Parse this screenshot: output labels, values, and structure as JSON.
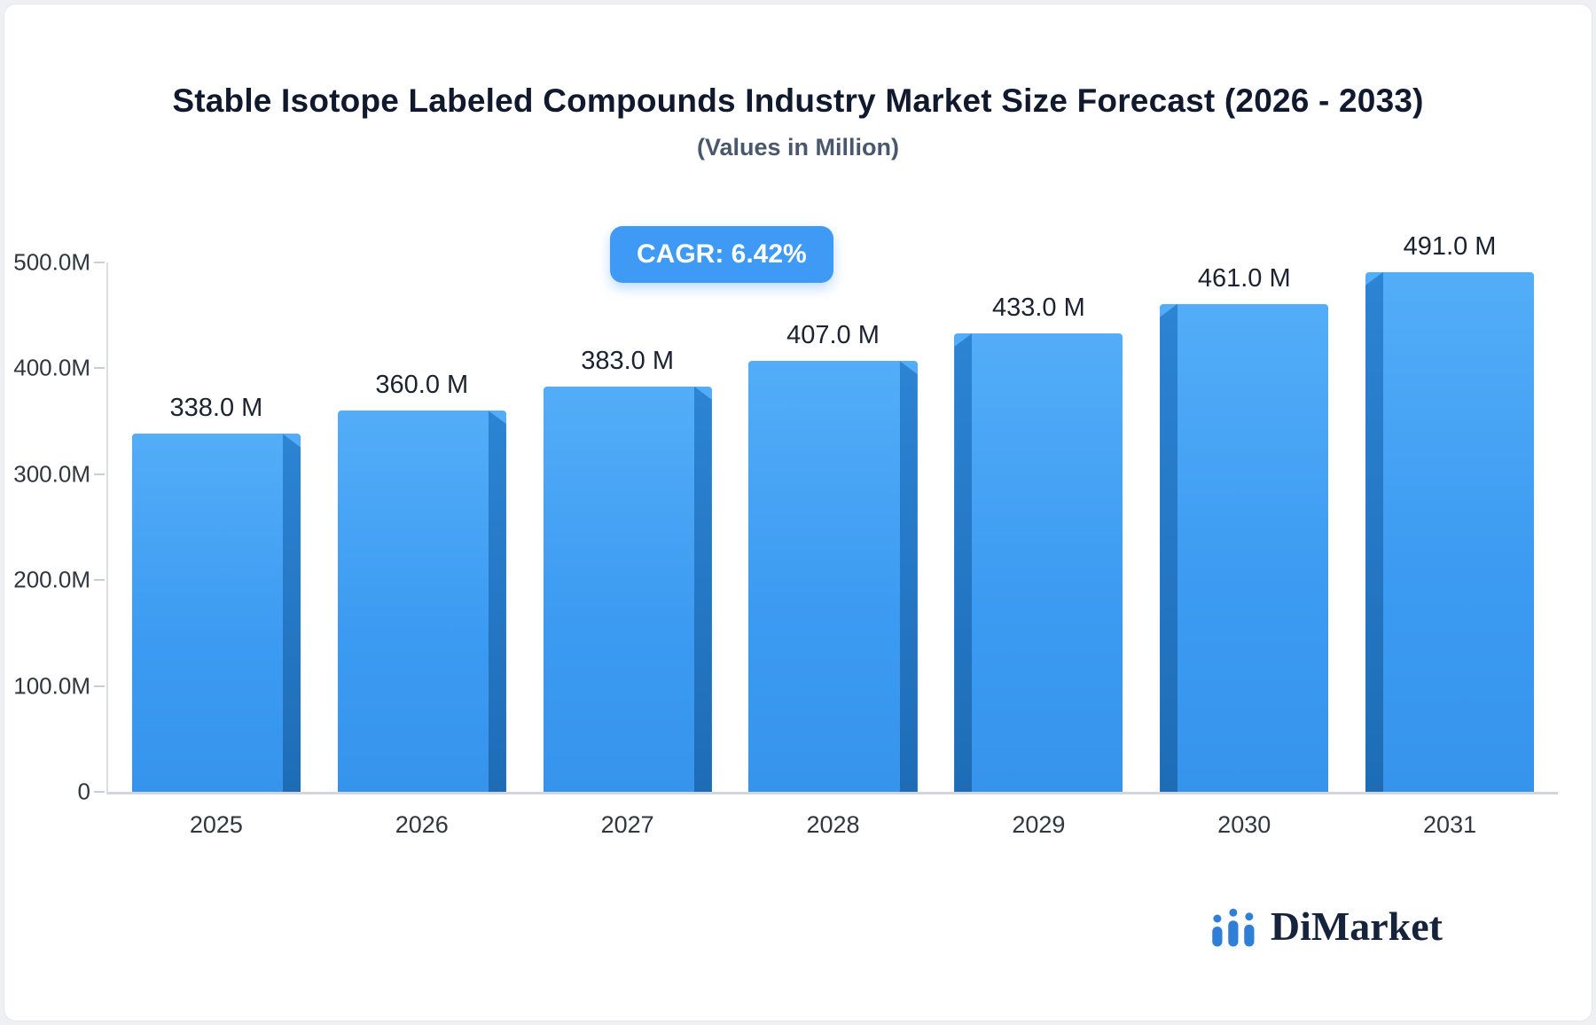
{
  "header": {
    "title": "Stable Isotope Labeled Compounds Industry Market Size Forecast (2026 - 2033)",
    "subtitle": "(Values in Million)"
  },
  "badge": {
    "cagr_label": "CAGR: 6.42%"
  },
  "branding": {
    "logo_text": "DiMarket",
    "logo_color": "#2f7fd6",
    "text_color": "#16233d"
  },
  "chart_data": {
    "type": "bar",
    "title": "Stable Isotope Labeled Compounds Industry Market Size Forecast (2026 - 2033)",
    "subtitle": "(Values in Million)",
    "categories": [
      "2025",
      "2026",
      "2027",
      "2028",
      "2029",
      "2030",
      "2031"
    ],
    "values": [
      338.0,
      360.0,
      383.0,
      407.0,
      433.0,
      461.0,
      491.0
    ],
    "value_labels": [
      "338.0 M",
      "360.0 M",
      "383.0 M",
      "407.0 M",
      "433.0 M",
      "461.0 M",
      "491.0 M"
    ],
    "xlabel": "",
    "ylabel": "",
    "ylim": [
      0,
      500
    ],
    "yticks": [
      {
        "value": 500,
        "label": "500.0M"
      },
      {
        "value": 400,
        "label": "400.0M"
      },
      {
        "value": 300,
        "label": "300.0M"
      },
      {
        "value": 200,
        "label": "200.0M"
      },
      {
        "value": 100,
        "label": "100.0M"
      },
      {
        "value": 0,
        "label": "0"
      }
    ],
    "grid": false,
    "legend": false,
    "annotations": [
      "CAGR: 6.42%"
    ],
    "bar_color": "#3b9af1",
    "bar_side_color": "#1e6cb6"
  }
}
